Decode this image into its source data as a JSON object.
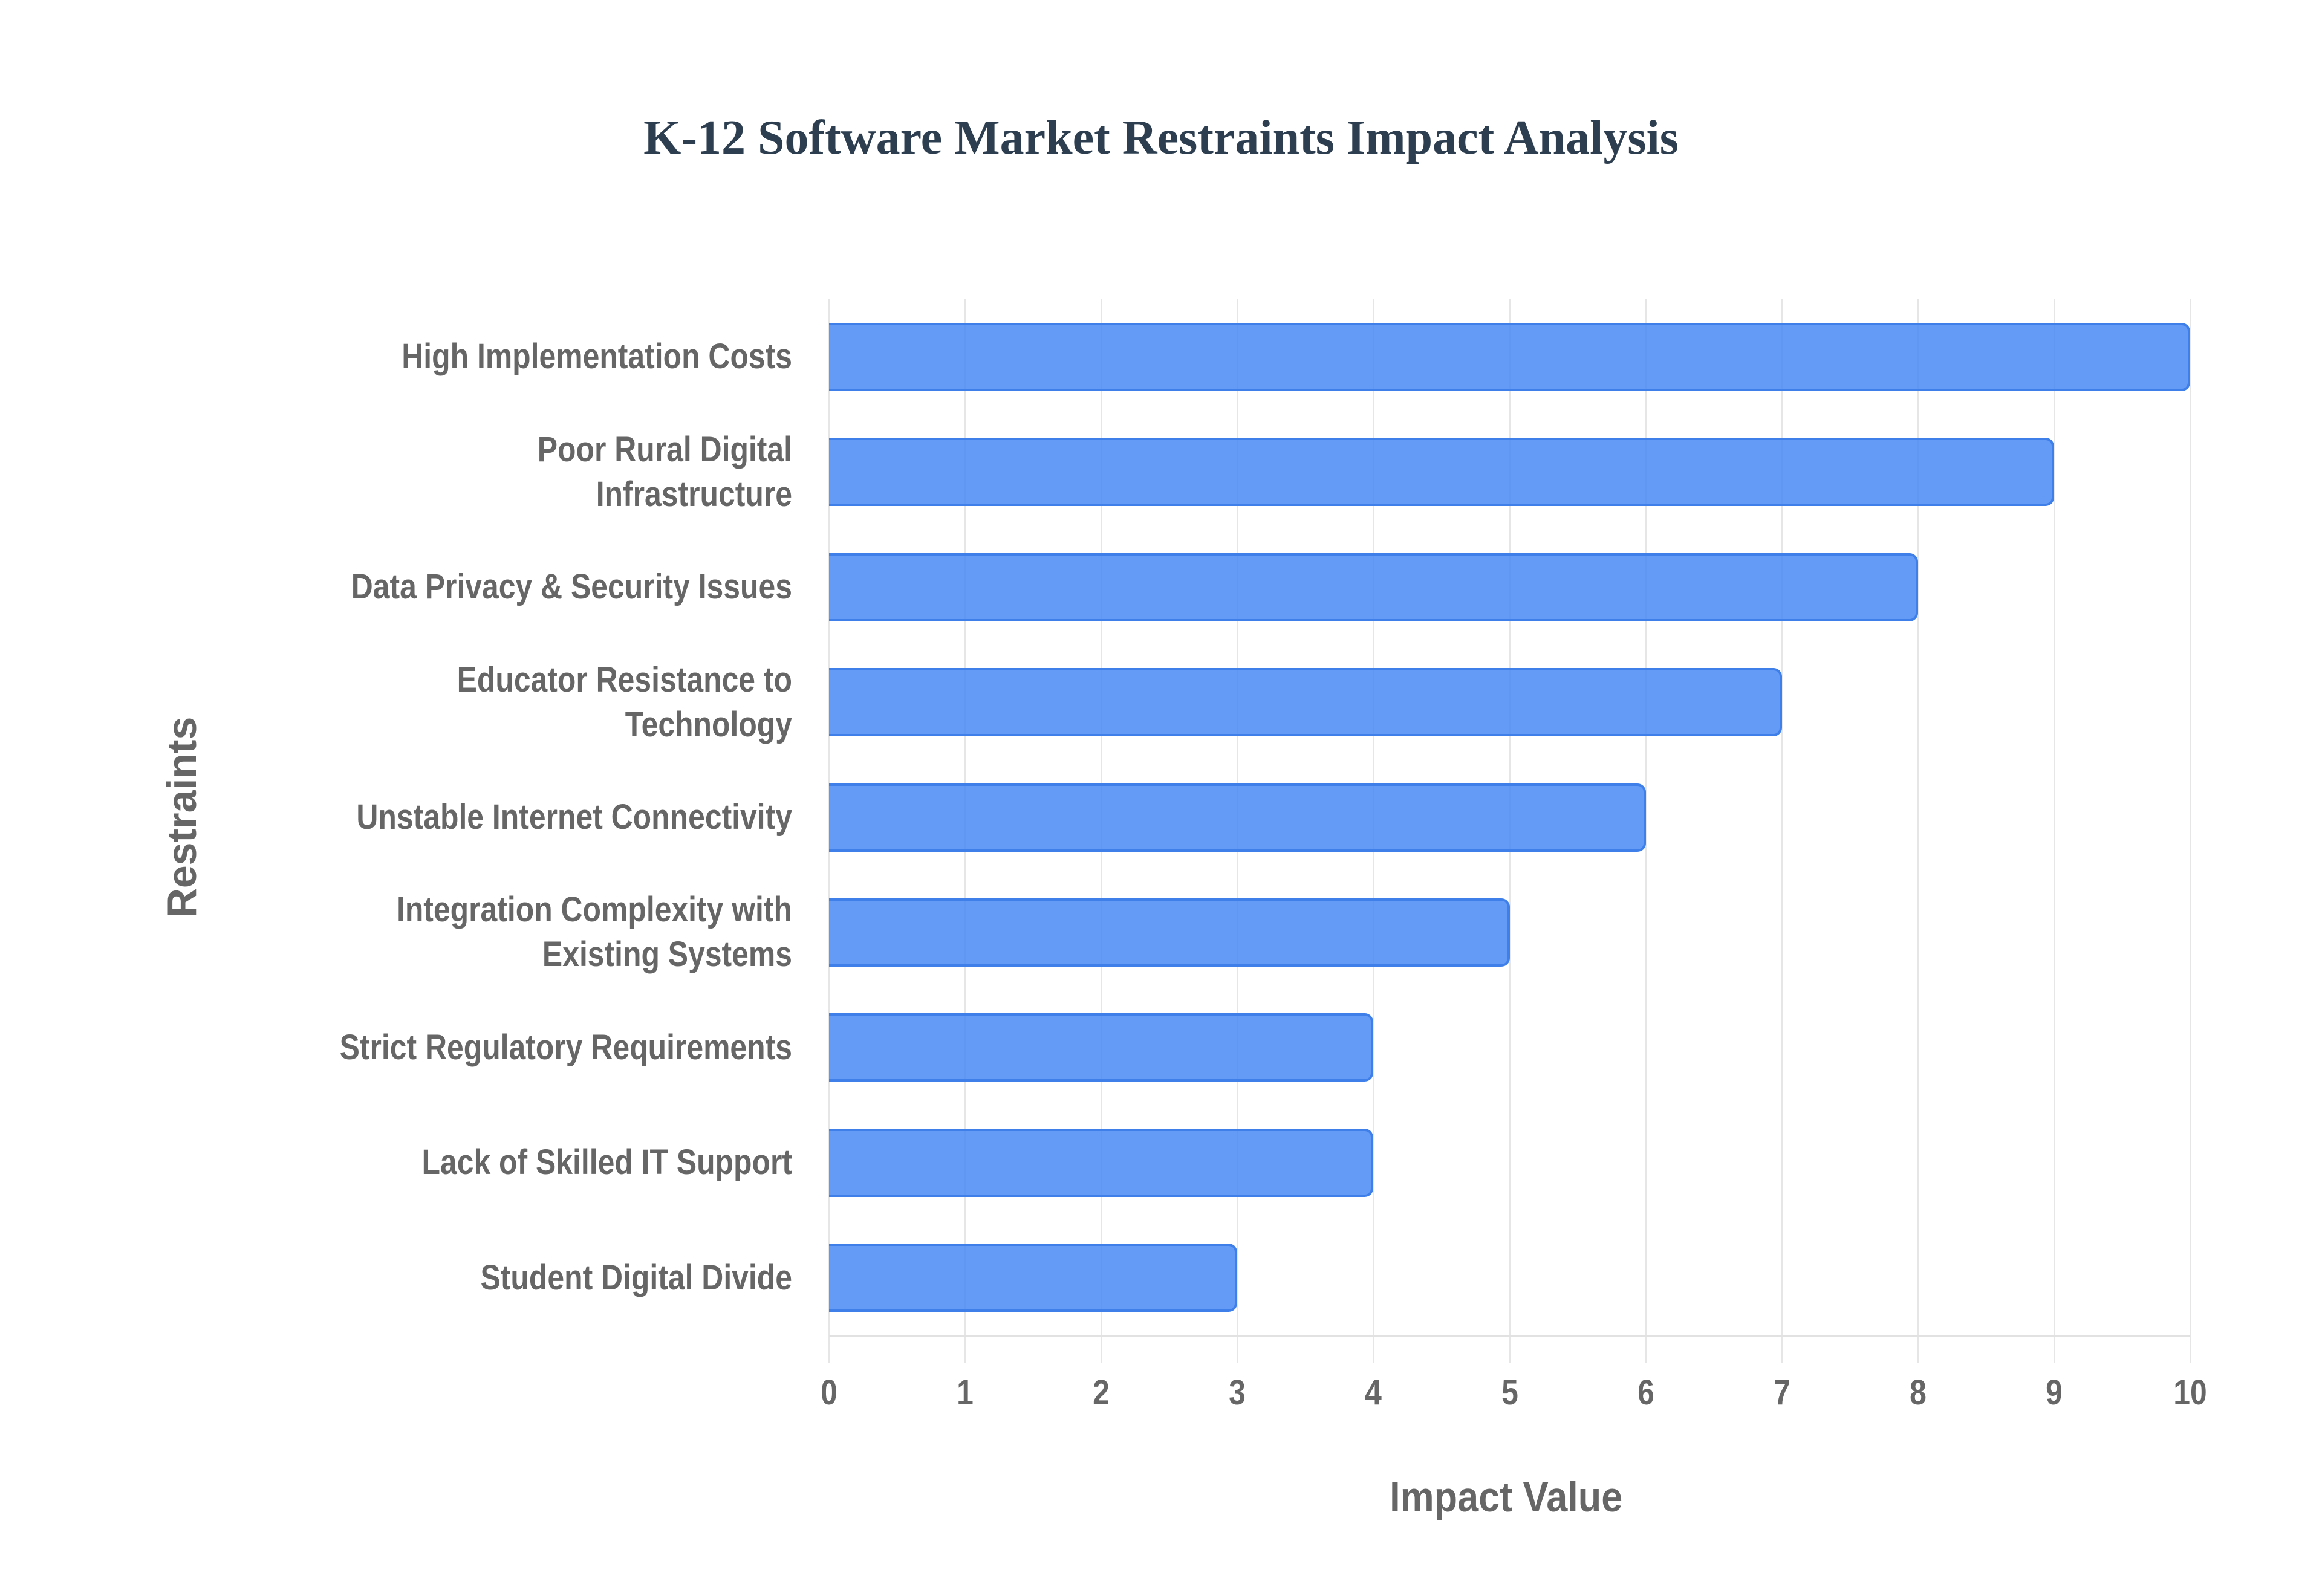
{
  "chart_data": {
    "type": "bar",
    "orientation": "horizontal",
    "title": "K-12 Software Market Restraints Impact Analysis",
    "xlabel": "Impact Value",
    "ylabel": "Restraints",
    "categories": [
      "High Implementation Costs",
      "Poor Rural Digital Infrastructure",
      "Data Privacy & Security Issues",
      "Educator Resistance to Technology",
      "Unstable Internet Connectivity",
      "Integration Complexity with Existing Systems",
      "Strict Regulatory Requirements",
      "Lack of Skilled IT Support",
      "Student Digital Divide"
    ],
    "values": [
      10,
      9,
      8,
      7,
      6,
      5,
      4,
      4,
      3
    ],
    "xlim": [
      0,
      10
    ],
    "xticks": [
      "0",
      "1",
      "2",
      "3",
      "4",
      "5",
      "6",
      "7",
      "8",
      "9",
      "10"
    ],
    "grid": true,
    "legend": null,
    "bar_color": "#4285F4",
    "bar_border_color": "#3F7FEA"
  },
  "labels": {
    "title": "K-12 Software Market Restraints Impact Analysis",
    "x_axis_title": "Impact Value",
    "y_axis_title": "Restraints",
    "y_categories_wrapped": [
      [
        "High Implementation Costs"
      ],
      [
        "Poor Rural Digital",
        "Infrastructure"
      ],
      [
        "Data Privacy & Security Issues"
      ],
      [
        "Educator Resistance to",
        "Technology"
      ],
      [
        "Unstable Internet Connectivity"
      ],
      [
        "Integration Complexity with",
        "Existing Systems"
      ],
      [
        "Strict Regulatory Requirements"
      ],
      [
        "Lack of Skilled IT Support"
      ],
      [
        "Student Digital Divide"
      ]
    ]
  }
}
